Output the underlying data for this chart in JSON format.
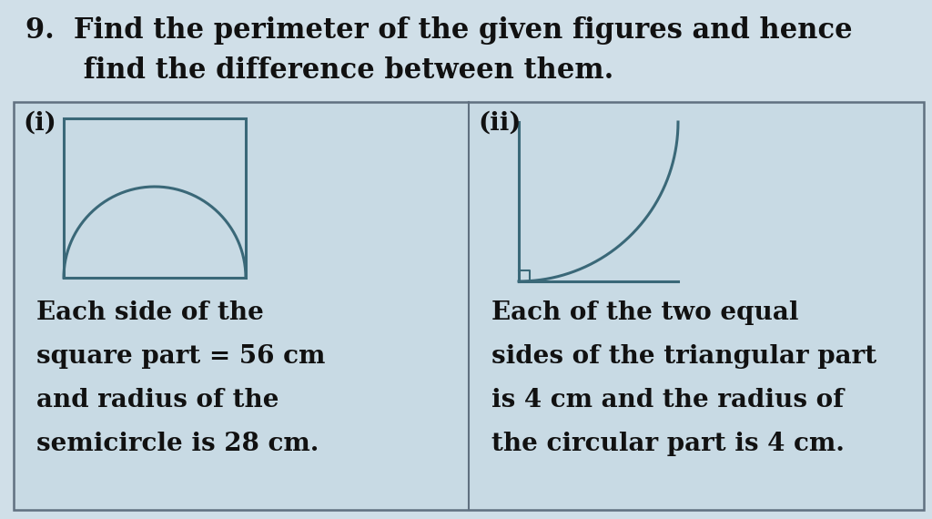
{
  "background_color": "#d0dfe8",
  "title_line1": "9.  Find the perimeter of the given figures and hence",
  "title_line2": "      find the difference between them.",
  "title_fontsize": 22,
  "title_color": "#111111",
  "box_bg_color": "#c8dae4",
  "box_edge_color": "#607080",
  "fig_label_i": "(i)",
  "fig_label_ii": "(ii)",
  "label_fontsize": 20,
  "text_i_line1": "Each side of the",
  "text_i_line2": "square part = 56 cm",
  "text_i_line3": "and radius of the",
  "text_i_line4": "semicircle is 28 cm.",
  "text_ii_line1": "Each of the two equal",
  "text_ii_line2": "sides of the triangular part",
  "text_ii_line3": "is 4 cm and the radius of",
  "text_ii_line4": "the circular part is 4 cm.",
  "text_fontsize": 20,
  "text_color": "#111111",
  "shape_color": "#3a6878",
  "shape_linewidth": 2.2
}
